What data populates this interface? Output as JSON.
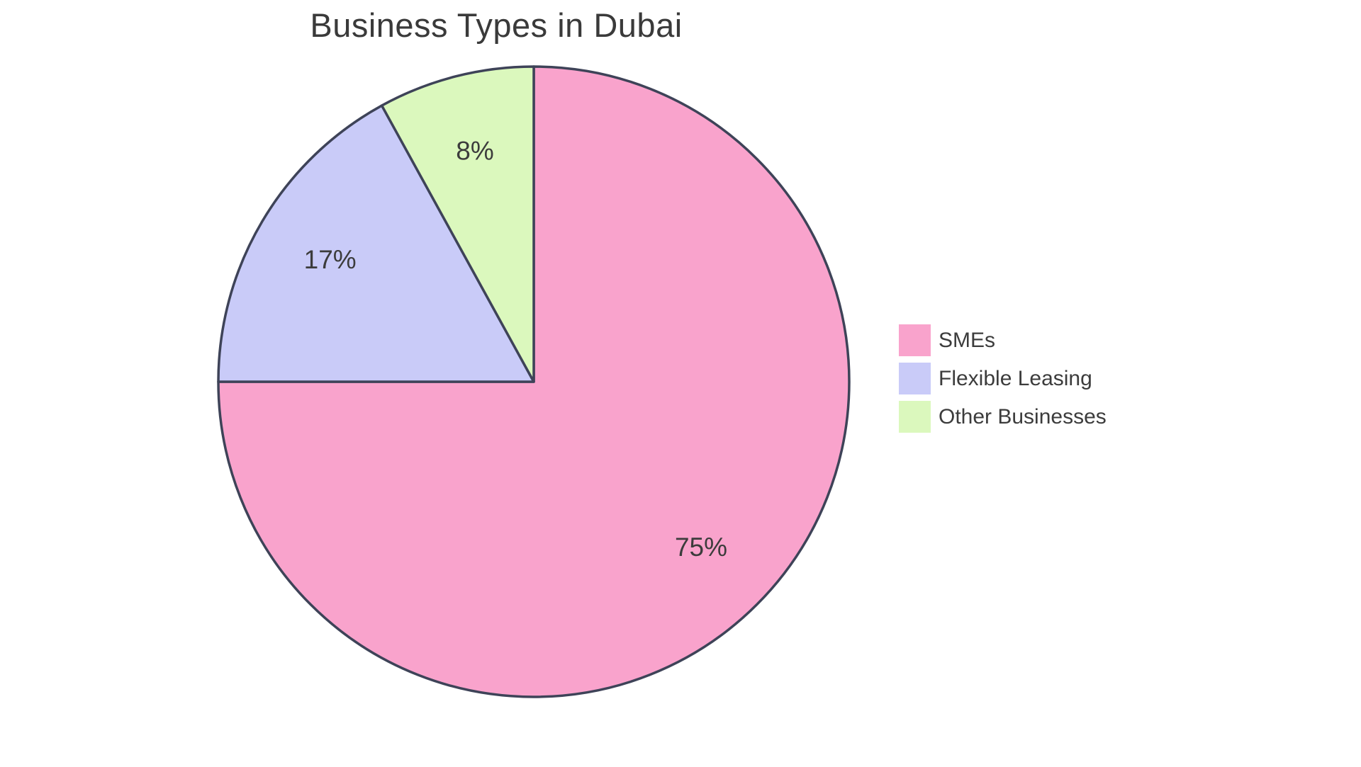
{
  "chart_data": {
    "type": "pie",
    "title": "Business Types in Dubai",
    "slices": [
      {
        "label": "SMEs",
        "value_pct": 75,
        "display": "75%",
        "color": "#F9A3CC"
      },
      {
        "label": "Flexible Leasing",
        "value_pct": 17,
        "display": "17%",
        "color": "#C9CBF8"
      },
      {
        "label": "Other Businesses",
        "value_pct": 8,
        "display": "8%",
        "color": "#DBF8BD"
      }
    ],
    "start_angle_deg": 0,
    "direction": "clockwise",
    "stroke_color": "#3E4358",
    "label_color": "#3C3C3C",
    "legend_position": "right",
    "background": "#FFFFFF"
  }
}
